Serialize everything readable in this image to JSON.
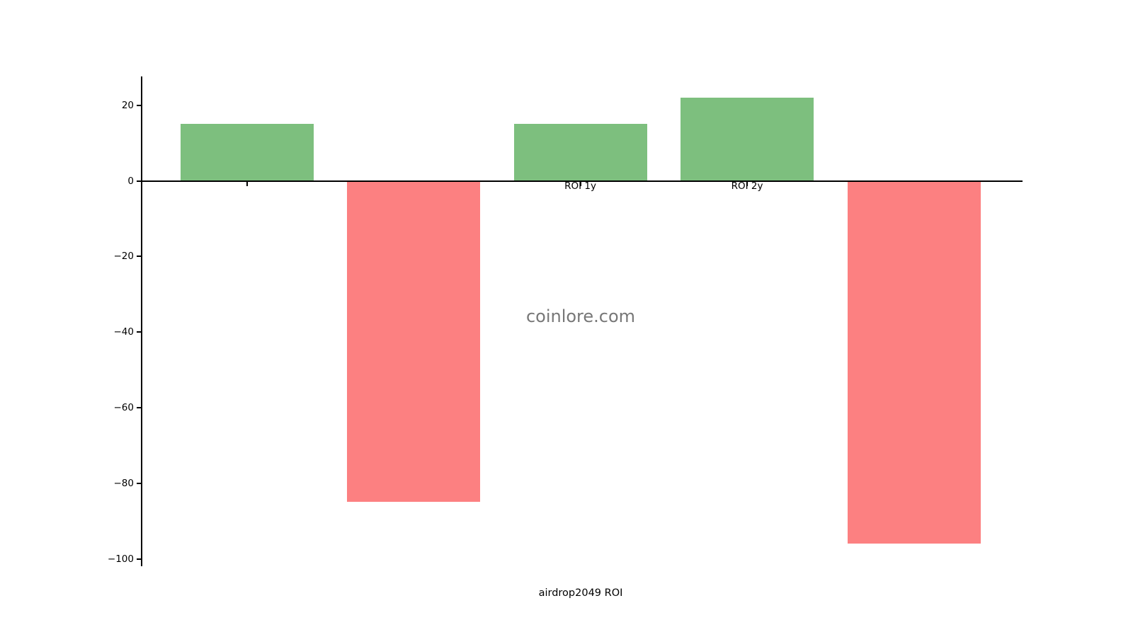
{
  "page": {
    "watermark": "coinlore.com",
    "title": "airdrop2049 ROI"
  },
  "chart_data": {
    "type": "bar",
    "title": "airdrop2049 ROI",
    "watermark": "coinlore.com",
    "categories": [
      "",
      "",
      "ROI 1y",
      "ROI 2y",
      ""
    ],
    "values": [
      15,
      -85,
      15,
      22,
      -96
    ],
    "positive_color": "#7dbf7e",
    "negative_color": "#fc8081",
    "y_ticks": [
      20,
      0,
      -20,
      -40,
      -60,
      -80,
      -100
    ],
    "ylim": [
      -101.5,
      27.5
    ],
    "x_ticks_shown_at_indices": [
      0,
      2,
      3
    ],
    "grid": false,
    "legend": false,
    "axis_color": "#000000",
    "text_color": "#000000",
    "watermark_color": "#777777"
  }
}
